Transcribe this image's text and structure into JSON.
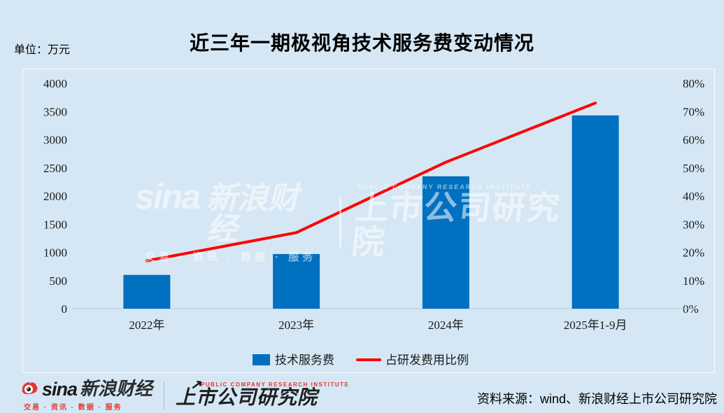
{
  "page": {
    "background": "#D5E7F4"
  },
  "header": {
    "unit_label": "单位：万元",
    "title": "近三年一期极视角技术服务费变动情况"
  },
  "chart_data": {
    "type": "bar",
    "title": "近三年一期极视角技术服务费变动情况",
    "unit": "万元",
    "categories": [
      "2022年",
      "2023年",
      "2024年",
      "2025年1-9月"
    ],
    "series": [
      {
        "name": "技术服务费",
        "type": "bar",
        "axis": "left",
        "color": "#0070C0",
        "values": [
          600,
          970,
          2350,
          3430
        ]
      },
      {
        "name": "占研发费用比例",
        "type": "line",
        "axis": "right",
        "color": "#FF0000",
        "values": [
          17,
          27,
          52,
          73
        ]
      }
    ],
    "left_axis": {
      "min": 0,
      "max": 4000,
      "step": 500,
      "ticks": [
        "4000",
        "3500",
        "3000",
        "2500",
        "2000",
        "1500",
        "1000",
        "500",
        "0"
      ]
    },
    "right_axis": {
      "min": 0,
      "max": 80,
      "step": 10,
      "ticks": [
        "80%",
        "70%",
        "60%",
        "50%",
        "40%",
        "30%",
        "20%",
        "10%",
        "0%"
      ]
    },
    "legend_position": "bottom",
    "grid": false
  },
  "watermark": {
    "sina_word": "sina",
    "brand": "新浪财经",
    "tagline": "交易 · 资讯 · 数据 · 服务",
    "institute_en": "PUBLIC COMPANY RESEARCH INSTITUTE",
    "institute": "上市公司研究院"
  },
  "footer": {
    "sina_word": "sina",
    "sina_brand": "新浪财经",
    "sina_tagline": "交易 · 资讯 · 数据 · 服务",
    "institute_en": "PUBLIC COMPANY RESEARCH INSTITUTE",
    "institute": "上市公司研究院",
    "source": "资料来源：wind、新浪财经上市公司研究院"
  },
  "colors": {
    "background": "#D5E7F4",
    "bar": "#0070C0",
    "line": "#FF0000",
    "axis_text": "#1a1a1a",
    "baseline": "#bccbd9",
    "accent_red": "#E3372F"
  }
}
